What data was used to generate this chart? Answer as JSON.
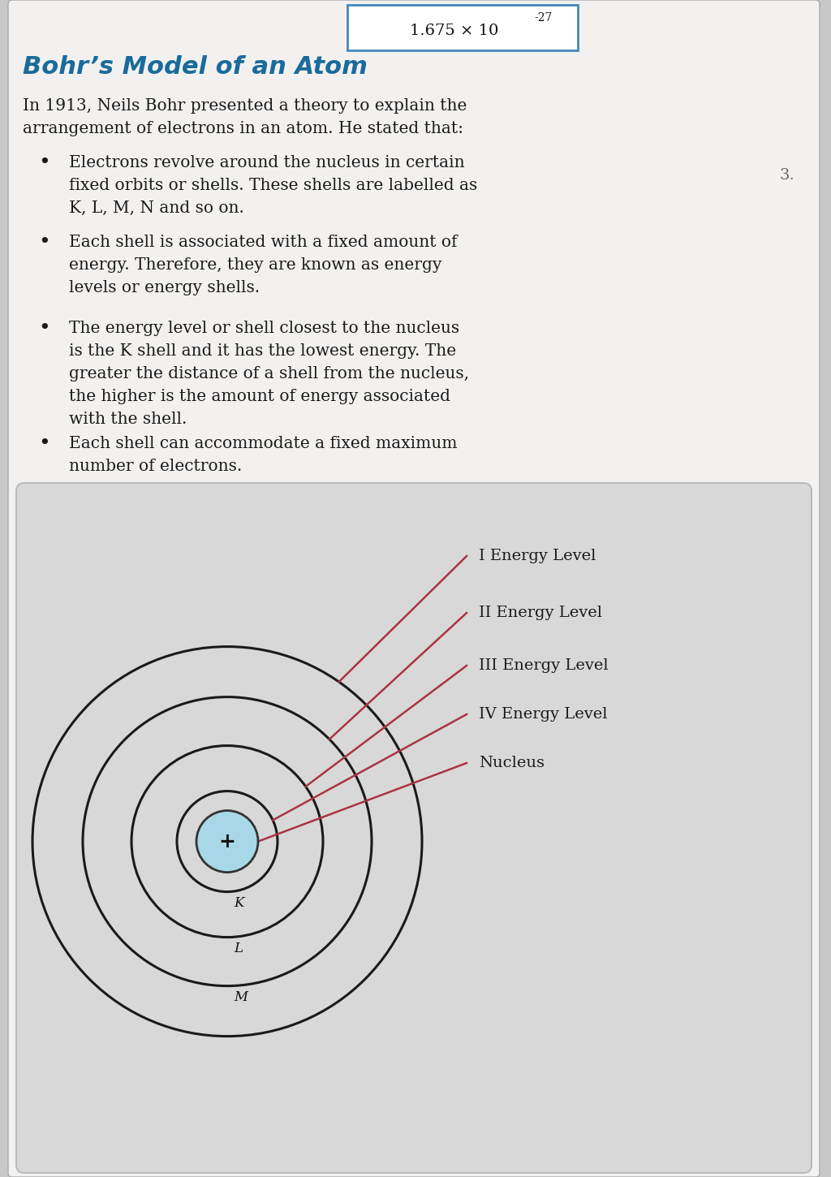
{
  "title": "Bohr’s Model of an Atom",
  "title_color": "#1a6b9a",
  "bg_color": "#f2f1f0",
  "page_bg": "#c8c8c8",
  "text_color": "#1a1a1a",
  "intro_line1": "In 1913, Neils Bohr presented a theory to explain the",
  "intro_line2": "arrangement of electrons in an atom. He stated that:",
  "bullet1_lines": [
    "Electrons revolve around the nucleus in certain",
    "fixed orbits or shells. These shells are labelled as",
    "K, L, M, N and so on."
  ],
  "bullet2_lines": [
    "Each shell is associated with a fixed amount of",
    "energy. Therefore, they are known as energy",
    "levels or energy shells."
  ],
  "bullet3_lines": [
    "The energy level or shell closest to the nucleus",
    "is the K shell and it has the lowest energy. The",
    "greater the distance of a shell from the nucleus,",
    "the higher is the amount of energy associated",
    "with the shell."
  ],
  "bullet4_lines": [
    "Each shell can accommodate a fixed maximum",
    "number of electrons."
  ],
  "diagram_bg": "#d8d8d8",
  "orbit_color": "#1a1a1a",
  "nucleus_fill": "#a8d8e8",
  "nucleus_border": "#333333",
  "line_color": "#aa3344",
  "legend_labels": [
    "I Energy Level",
    "II Energy Level",
    "III Energy Level",
    "IV Energy Level",
    "Nucleus"
  ],
  "shell_labels": [
    "K",
    "L",
    "M"
  ],
  "number3": "3.",
  "header_text": "1.675 × 10",
  "header_exp": "-27"
}
